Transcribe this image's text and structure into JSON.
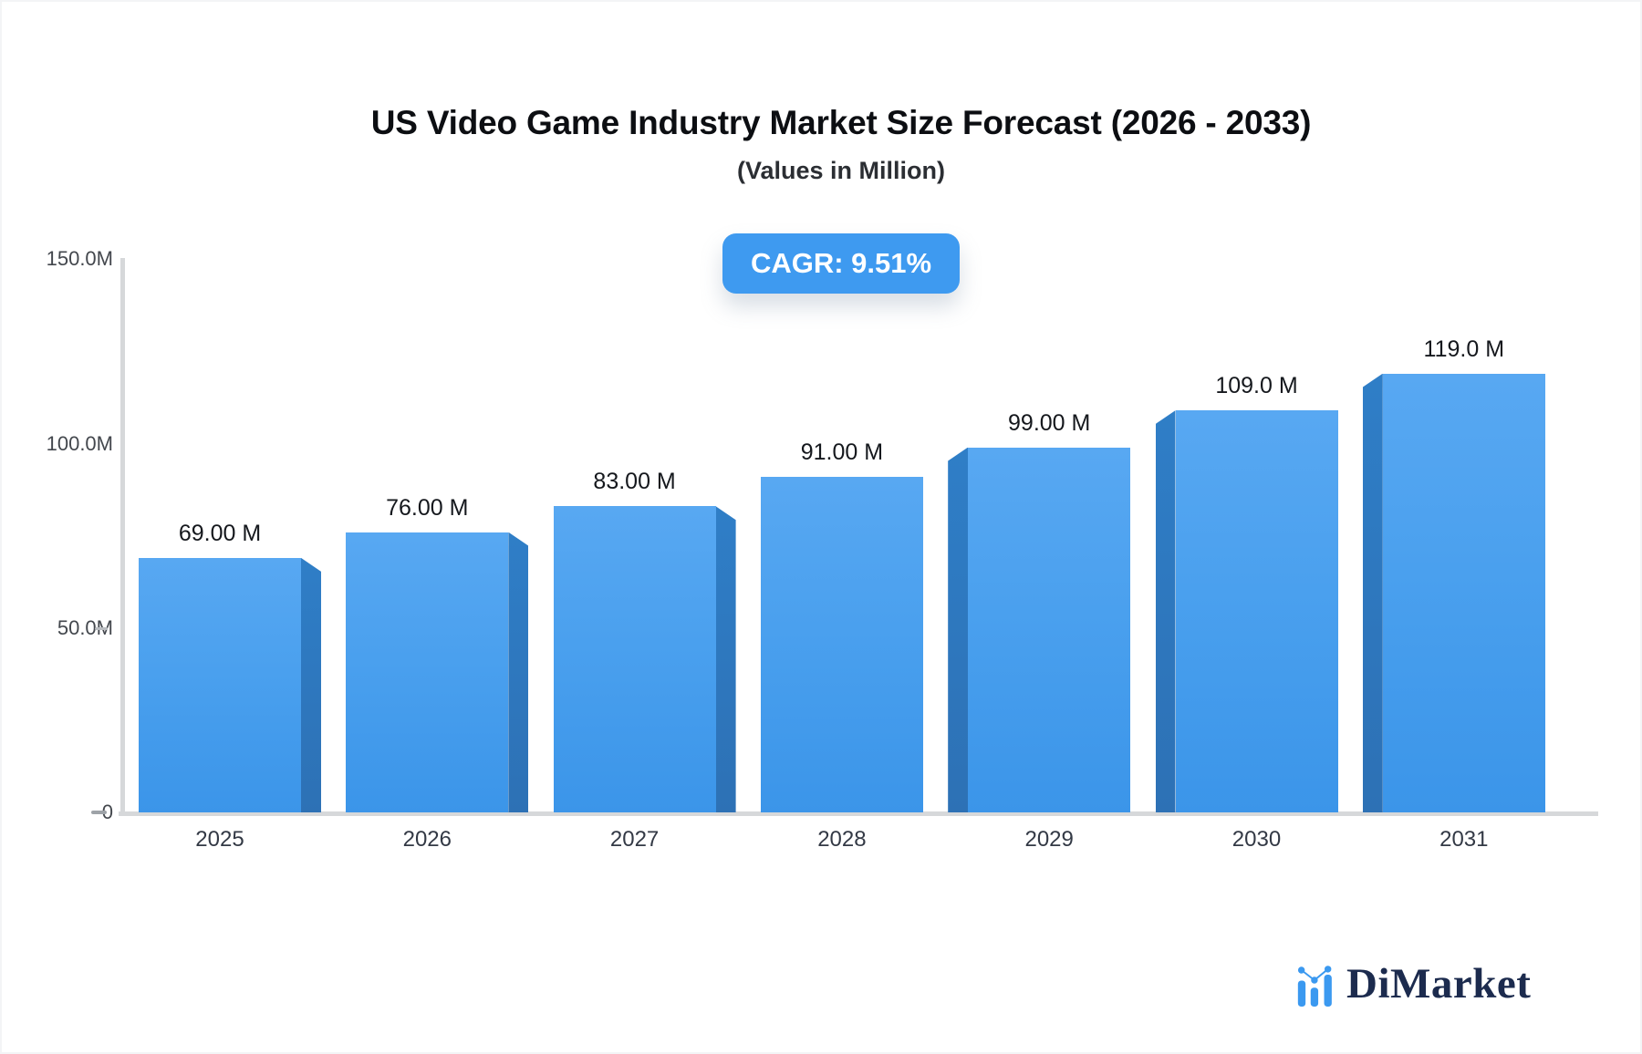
{
  "header": {
    "title": "US Video Game Industry Market Size Forecast (2026 - 2033)",
    "subtitle": "(Values in Million)",
    "cagr_badge": "CAGR: 9.51%"
  },
  "chart_data": {
    "type": "bar",
    "title": "US Video Game Industry Market Size Forecast (2026 - 2033)",
    "subtitle": "(Values in Million)",
    "annotation": "CAGR: 9.51%",
    "categories": [
      "2025",
      "2026",
      "2027",
      "2028",
      "2029",
      "2030",
      "2031"
    ],
    "values": [
      69,
      76,
      83,
      91,
      99,
      109,
      119
    ],
    "value_labels": [
      "69.00 M",
      "76.00 M",
      "83.00 M",
      "91.00 M",
      "99.00 M",
      "109.0 M",
      "119.0 M"
    ],
    "xlabel": "",
    "ylabel": "",
    "ylim": [
      0,
      150
    ],
    "y_tick_labels": [
      "150.0M",
      "100.0M",
      "50.0M",
      "0"
    ],
    "y_tick_values": [
      150,
      100,
      50,
      0
    ],
    "grid": false,
    "legend": "none",
    "bar_style": "3d-beveled"
  },
  "branding": {
    "logo_text": "DiMarket",
    "logo_icon": "mini-bar-chart-trend-icon"
  },
  "colors": {
    "bar_face_top": "#58a8f2",
    "bar_face_bottom": "#3b95e9",
    "bar_side": "#2e7abf",
    "badge_bg": "#3e9af0",
    "badge_text": "#ffffff",
    "axis": "#d6d8da",
    "title_text": "#0c0e12",
    "year_label": "#333945",
    "value_label": "#15181d",
    "logo_navy": "#1c2b4e",
    "logo_blue": "#3b99f0"
  }
}
